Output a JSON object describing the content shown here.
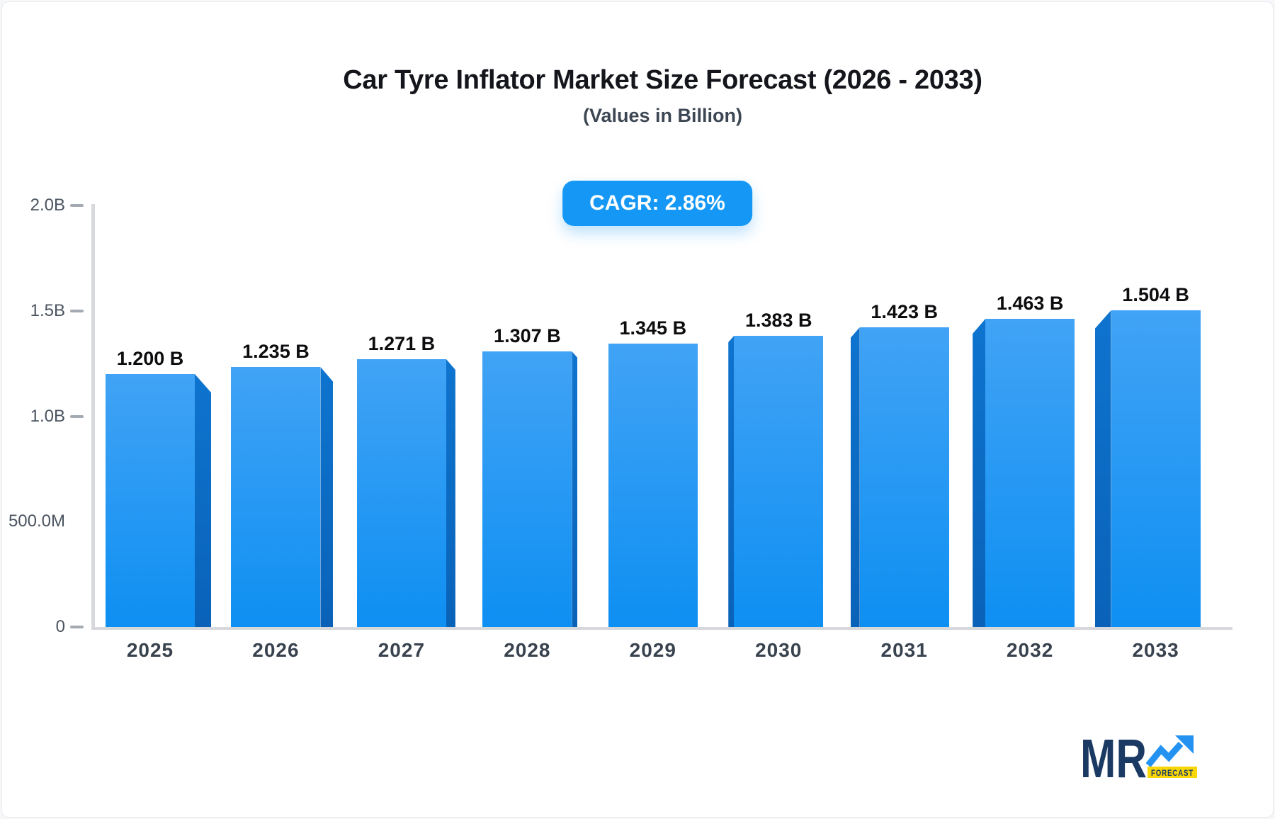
{
  "header": {
    "title": "Car Tyre Inflator Market Size Forecast (2026 - 2033)",
    "subtitle": "(Values in Billion)",
    "cagr_badge": "CAGR: 2.86%"
  },
  "chart_data": {
    "type": "bar",
    "title": "Car Tyre Inflator Market Size Forecast (2026 - 2033)",
    "subtitle": "(Values in Billion)",
    "cagr_percent": "2.86%",
    "categories": [
      "2025",
      "2026",
      "2027",
      "2028",
      "2029",
      "2030",
      "2031",
      "2032",
      "2033"
    ],
    "values": [
      1.2,
      1.235,
      1.271,
      1.307,
      1.345,
      1.383,
      1.423,
      1.463,
      1.504
    ],
    "value_labels": [
      "1.200 B",
      "1.235 B",
      "1.271 B",
      "1.307 B",
      "1.345 B",
      "1.383 B",
      "1.423 B",
      "1.463 B",
      "1.504 B"
    ],
    "xlabel": "",
    "ylabel": "",
    "ylim": [
      0,
      2.0
    ],
    "grid": false,
    "legend": false,
    "y_ticks": [
      {
        "label": "2.0B",
        "value": 2.0,
        "has_tick": true
      },
      {
        "label": "1.5B",
        "value": 1.5,
        "has_tick": true
      },
      {
        "label": "1.0B",
        "value": 1.0,
        "has_tick": true
      },
      {
        "label": "500.0M",
        "value": 0.5,
        "has_tick": false
      },
      {
        "label": "0",
        "value": 0.0,
        "has_tick": true
      }
    ]
  },
  "colors": {
    "badge": "#1598f5",
    "bar_top": "#41a3f5",
    "bar_bottom": "#0e8ff2",
    "bar_side": "#0c6ac2",
    "axis": "#d6d8dc",
    "tick": "#a4aab2",
    "y_label": "#4a5460",
    "x_label": "#39434f",
    "title": "#14161c",
    "subtitle": "#3d4754",
    "logo_navy": "#1b3a63",
    "logo_yellow": "#f9d606",
    "logo_arrow": "#2492f0"
  },
  "logo": {
    "brand": "MR",
    "badge": "FORECAST"
  }
}
